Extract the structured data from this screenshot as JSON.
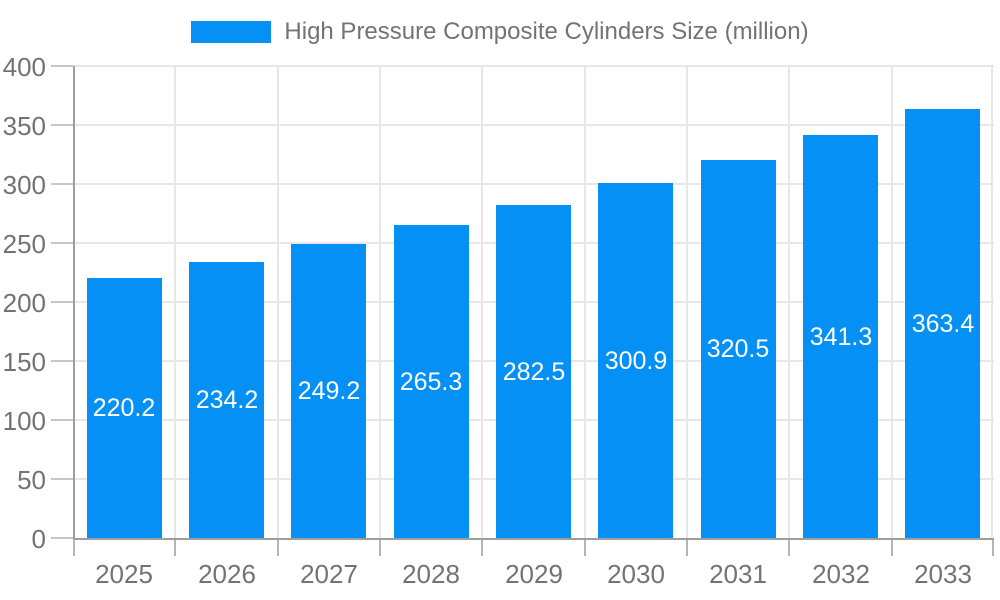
{
  "legend": {
    "label": "High Pressure Composite Cylinders Size (million)"
  },
  "chart_data": {
    "type": "bar",
    "title": "High Pressure Composite Cylinders Size (million)",
    "categories": [
      "2025",
      "2026",
      "2027",
      "2028",
      "2029",
      "2030",
      "2031",
      "2032",
      "2033"
    ],
    "values": [
      220.2,
      234.2,
      249.2,
      265.3,
      282.5,
      300.9,
      320.5,
      341.3,
      363.4
    ],
    "xlabel": "",
    "ylabel": "",
    "ylim": [
      0,
      400
    ],
    "ytick_step": 50,
    "grid": true,
    "legend_position": "top",
    "colors": {
      "bar": "#0590F6",
      "value_label": "#ffffff",
      "axis_line": "#9e9e9e",
      "gridline": "#e7e7e7",
      "tick": "#c6c6c6",
      "text": "#737373"
    }
  }
}
